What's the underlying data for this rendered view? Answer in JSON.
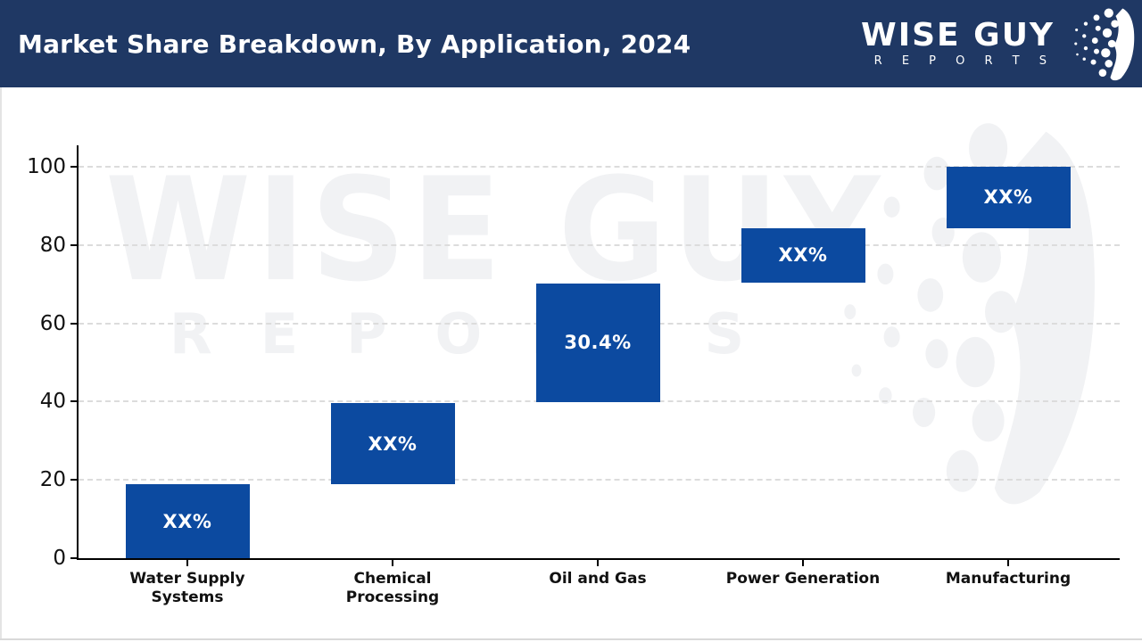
{
  "header": {
    "title": "Market Share Breakdown, By Application, 2024",
    "bg_color": "#1f3864",
    "logo": {
      "line1": "WISE GUY",
      "line2": "R E P O R T S"
    }
  },
  "watermark": {
    "line1": "WISE GUY",
    "line2": "REPORTS"
  },
  "chart_data": {
    "type": "bar",
    "subtype": "waterfall",
    "title": "Market Share Breakdown, By Application, 2024",
    "categories": [
      "Water Supply Systems",
      "Chemical Processing",
      "Oil and Gas",
      "Power Generation",
      "Manufacturing"
    ],
    "category_lines": [
      [
        "Water Supply",
        "Systems"
      ],
      [
        "Chemical",
        "Processing"
      ],
      [
        "Oil and Gas"
      ],
      [
        "Power Generation"
      ],
      [
        "Manufacturing"
      ]
    ],
    "bars": [
      {
        "category": "Water Supply Systems",
        "start": 0,
        "end": 18.8,
        "label": "XX%"
      },
      {
        "category": "Chemical Processing",
        "start": 18.8,
        "end": 39.7,
        "label": "XX%"
      },
      {
        "category": "Oil and Gas",
        "start": 39.9,
        "end": 70.2,
        "label": "30.4%"
      },
      {
        "category": "Power Generation",
        "start": 70.4,
        "end": 84.3,
        "label": "XX%"
      },
      {
        "category": "Manufacturing",
        "start": 84.3,
        "end": 100,
        "label": "XX%"
      }
    ],
    "ylim": [
      0,
      100
    ],
    "yticks": [
      0,
      20,
      40,
      60,
      80,
      100
    ],
    "xlabel": "",
    "ylabel": "",
    "grid": "horizontal-dashed",
    "legend": "none",
    "bar_color": "#0c4aa0",
    "bar_label_color": "#ffffff",
    "axis_color": "#000000",
    "gridline_color": "#dcdcdc"
  }
}
